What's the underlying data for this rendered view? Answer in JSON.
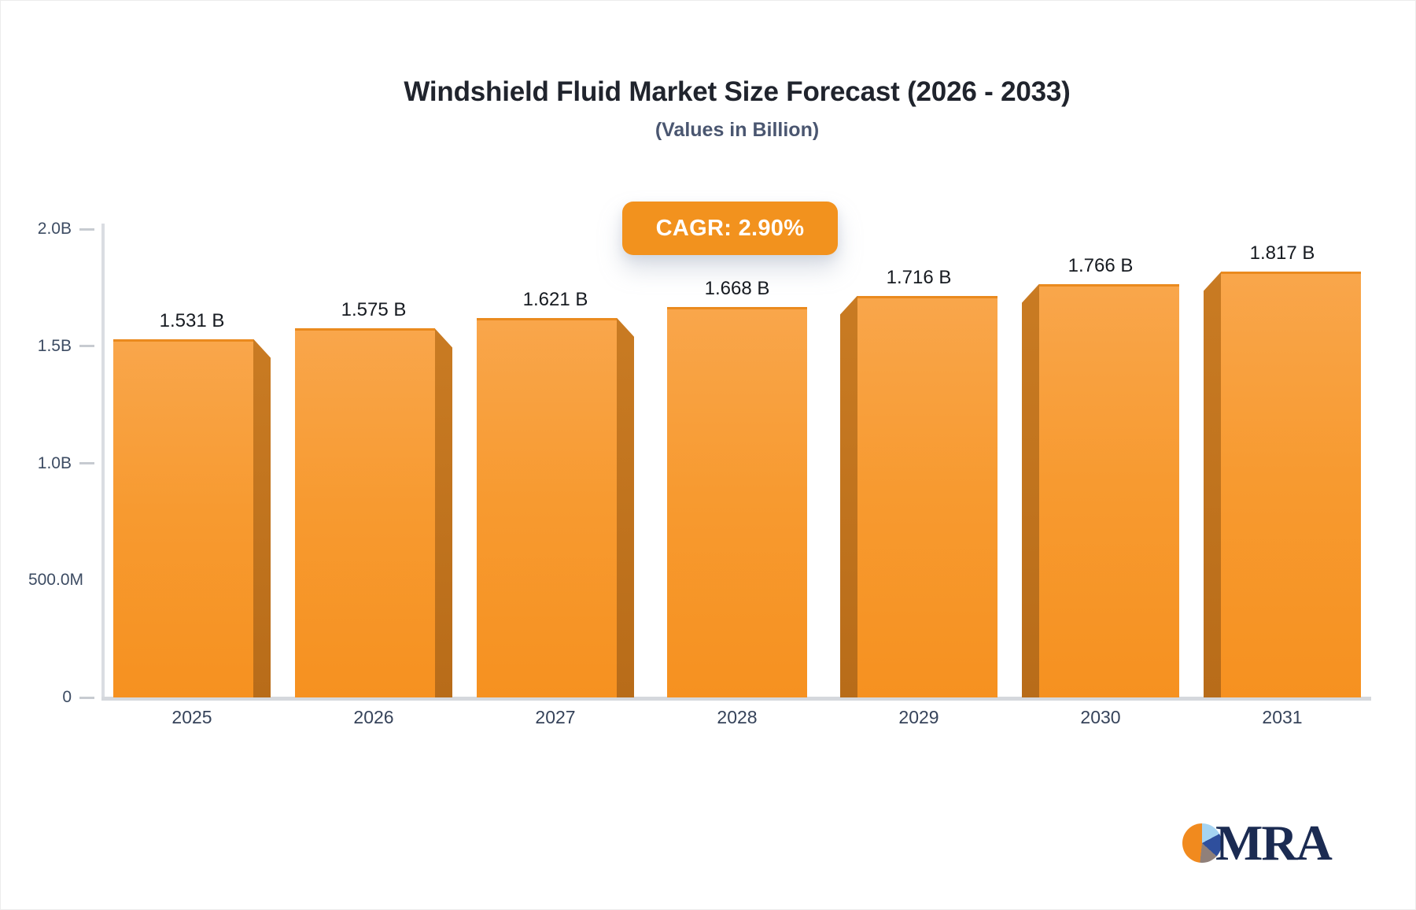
{
  "header": {
    "title": "Windshield Fluid Market Size Forecast (2026 - 2033)",
    "subtitle": "(Values in Billion)",
    "cagr_label": "CAGR: 2.90%"
  },
  "chart_data": {
    "type": "bar",
    "title": "Windshield Fluid Market Size Forecast (2026 - 2033)",
    "subtitle": "(Values in Billion)",
    "cagr": "2.90%",
    "unit": "Billion",
    "categories": [
      "2025",
      "2026",
      "2027",
      "2028",
      "2029",
      "2030",
      "2031"
    ],
    "values": [
      1.531,
      1.575,
      1.621,
      1.668,
      1.716,
      1.766,
      1.817
    ],
    "value_labels": [
      "1.531 B",
      "1.575 B",
      "1.621 B",
      "1.668 B",
      "1.716 B",
      "1.766 B",
      "1.817 B"
    ],
    "depth_sides": [
      "right",
      "right",
      "right",
      "none",
      "left",
      "left",
      "left"
    ],
    "y_ticks": [
      {
        "label": "2.0B",
        "value": 2.0,
        "dash": true
      },
      {
        "label": "1.5B",
        "value": 1.5,
        "dash": true
      },
      {
        "label": "1.0B",
        "value": 1.0,
        "dash": true
      },
      {
        "label": "500.0M",
        "value": 0.5,
        "dash": false
      },
      {
        "label": "0",
        "value": 0.0,
        "dash": true
      }
    ],
    "ylim": [
      0,
      2.0
    ],
    "grid": false,
    "legend": "none",
    "colors": {
      "bar_top": "#F9A64B",
      "bar_bottom": "#F69120",
      "bar_side": "#C1731E",
      "badge_bg": "#F2921E",
      "axis_line": "#D5D8DD",
      "tick_text": "#3D4C63",
      "value_text": "#161A20"
    }
  },
  "logo": {
    "text": "MRA",
    "pie_colors": [
      "#F18A1E",
      "#A6D4F2",
      "#2F4F9D",
      "#90807A"
    ]
  }
}
